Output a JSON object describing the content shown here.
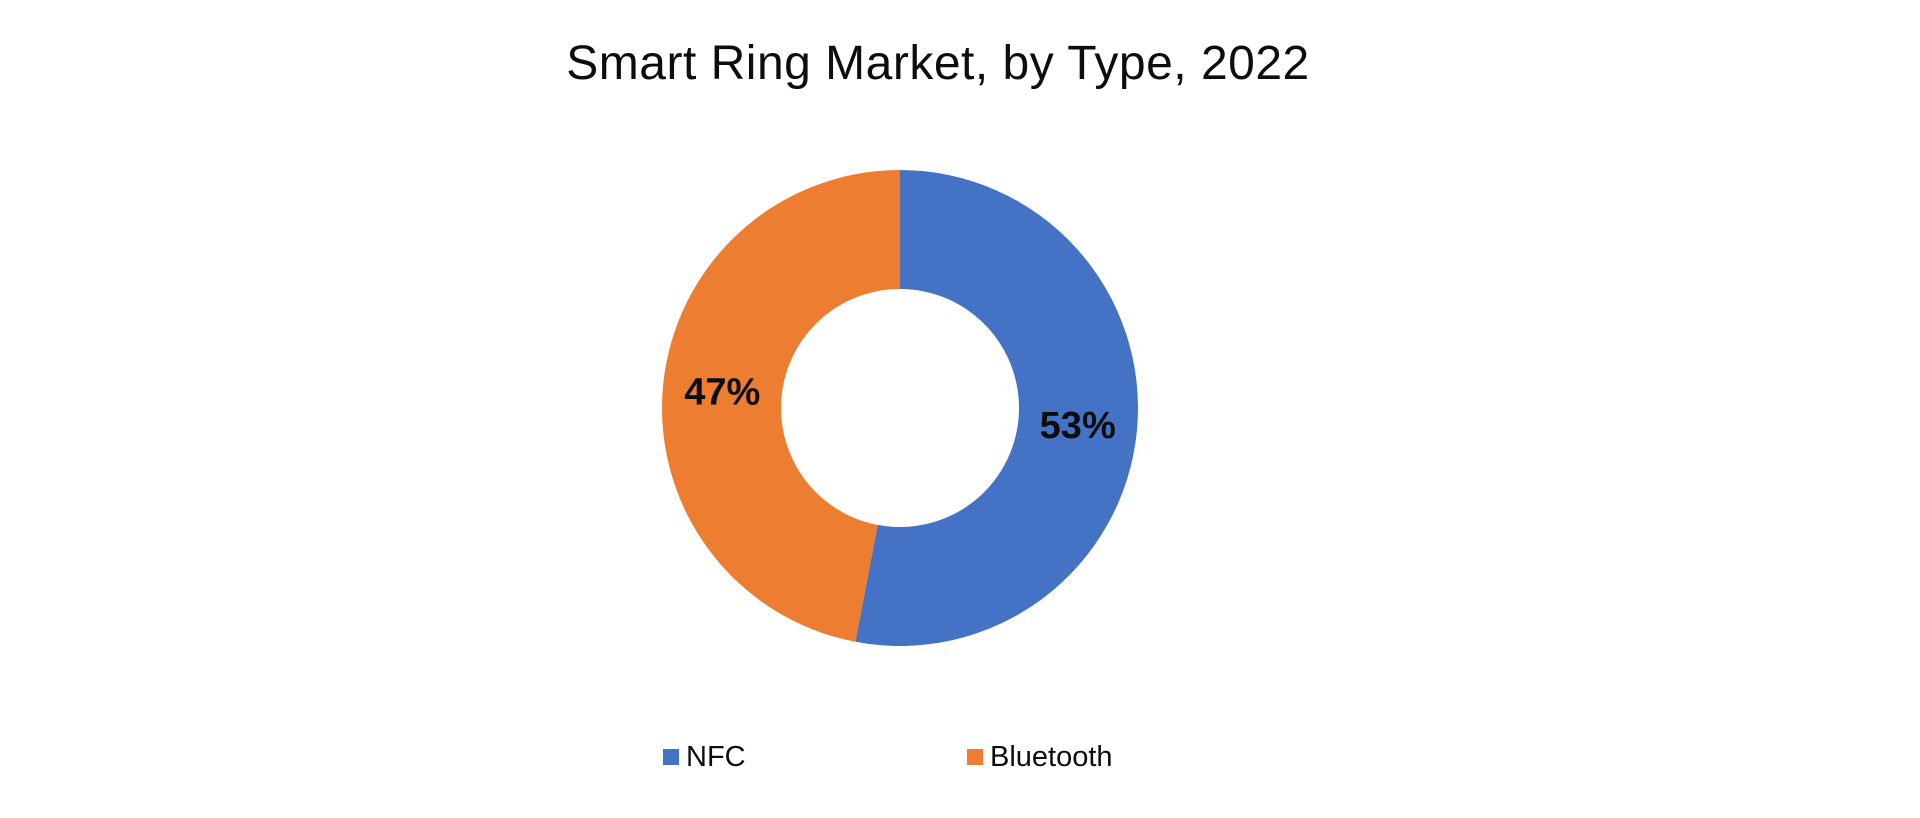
{
  "title": "Smart Ring Market, by Type, 2022",
  "chart_data": {
    "type": "pie",
    "subtype": "donut",
    "title": "Smart Ring Market, by Type, 2022",
    "categories": [
      "NFC",
      "Bluetooth"
    ],
    "values": [
      53,
      47
    ],
    "data_labels": [
      "53%",
      "47%"
    ],
    "colors": [
      "#4472C4",
      "#ED7D31"
    ],
    "start_angle_deg": 0,
    "direction": "clockwise",
    "inner_radius_ratio": 0.5,
    "legend_position": "bottom",
    "data_label_color": "#0d0d0d"
  },
  "legend": {
    "items": [
      {
        "label": "NFC",
        "color": "#4472C4"
      },
      {
        "label": "Bluetooth",
        "color": "#ED7D31"
      }
    ]
  }
}
